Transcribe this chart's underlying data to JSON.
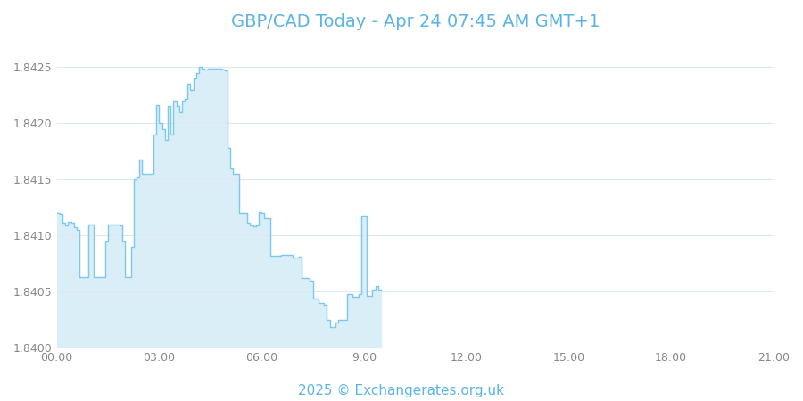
{
  "title": "GBP/CAD Today - Apr 24 07:45 AM GMT+1",
  "title_color": "#5ab4e5",
  "title_fontsize": 14,
  "footer_text": "2025 © Exchangerates.org.uk",
  "footer_color": "#5ab4e5",
  "footer_fontsize": 11,
  "line_color": "#7dc8ee",
  "fill_color": "#daeef8",
  "background_color": "#ffffff",
  "grid_color": "#dde8ef",
  "tick_color": "#888888",
  "ylim": [
    1.84,
    1.84275
  ],
  "yticks": [
    1.84,
    1.8405,
    1.841,
    1.8415,
    1.842,
    1.8425
  ],
  "xtick_labels": [
    "00:00",
    "03:00",
    "06:00",
    "9:00",
    "12:00",
    "15:00",
    "18:00",
    "21:00"
  ],
  "xtick_positions": [
    0,
    180,
    360,
    540,
    720,
    900,
    1080,
    1260
  ],
  "total_minutes": 1260,
  "series": [
    [
      0,
      1.8412
    ],
    [
      5,
      1.84119
    ],
    [
      10,
      1.84111
    ],
    [
      15,
      1.84109
    ],
    [
      20,
      1.84112
    ],
    [
      25,
      1.84111
    ],
    [
      30,
      1.84107
    ],
    [
      35,
      1.84105
    ],
    [
      40,
      1.84063
    ],
    [
      45,
      1.84063
    ],
    [
      50,
      1.84063
    ],
    [
      55,
      1.8411
    ],
    [
      60,
      1.8411
    ],
    [
      65,
      1.84063
    ],
    [
      70,
      1.84063
    ],
    [
      75,
      1.84063
    ],
    [
      80,
      1.84063
    ],
    [
      85,
      1.84095
    ],
    [
      90,
      1.8411
    ],
    [
      95,
      1.8411
    ],
    [
      100,
      1.8411
    ],
    [
      105,
      1.8411
    ],
    [
      110,
      1.84109
    ],
    [
      115,
      1.84095
    ],
    [
      120,
      1.84063
    ],
    [
      125,
      1.84063
    ],
    [
      130,
      1.8409
    ],
    [
      135,
      1.8415
    ],
    [
      140,
      1.84152
    ],
    [
      145,
      1.84168
    ],
    [
      150,
      1.84155
    ],
    [
      155,
      1.84155
    ],
    [
      160,
      1.84155
    ],
    [
      165,
      1.84155
    ],
    [
      170,
      1.8419
    ],
    [
      175,
      1.84216
    ],
    [
      180,
      1.842
    ],
    [
      185,
      1.84195
    ],
    [
      190,
      1.84185
    ],
    [
      195,
      1.84215
    ],
    [
      200,
      1.8419
    ],
    [
      205,
      1.8422
    ],
    [
      210,
      1.84215
    ],
    [
      215,
      1.8421
    ],
    [
      220,
      1.8422
    ],
    [
      225,
      1.84222
    ],
    [
      230,
      1.84235
    ],
    [
      235,
      1.8423
    ],
    [
      240,
      1.8424
    ],
    [
      245,
      1.84245
    ],
    [
      250,
      1.8425
    ],
    [
      255,
      1.84249
    ],
    [
      260,
      1.84248
    ],
    [
      265,
      1.84249
    ],
    [
      270,
      1.84249
    ],
    [
      275,
      1.84249
    ],
    [
      278,
      1.84249
    ],
    [
      280,
      1.84249
    ],
    [
      285,
      1.84249
    ],
    [
      288,
      1.84249
    ],
    [
      290,
      1.84248
    ],
    [
      295,
      1.84247
    ],
    [
      300,
      1.84178
    ],
    [
      305,
      1.8416
    ],
    [
      310,
      1.84155
    ],
    [
      315,
      1.84155
    ],
    [
      320,
      1.8412
    ],
    [
      325,
      1.8412
    ],
    [
      330,
      1.8412
    ],
    [
      335,
      1.84111
    ],
    [
      340,
      1.84109
    ],
    [
      345,
      1.84108
    ],
    [
      350,
      1.84109
    ],
    [
      355,
      1.84121
    ],
    [
      360,
      1.8412
    ],
    [
      365,
      1.84115
    ],
    [
      370,
      1.84115
    ],
    [
      375,
      1.84082
    ],
    [
      380,
      1.84082
    ],
    [
      385,
      1.84082
    ],
    [
      390,
      1.84082
    ],
    [
      395,
      1.84083
    ],
    [
      400,
      1.84083
    ],
    [
      405,
      1.84083
    ],
    [
      410,
      1.84083
    ],
    [
      415,
      1.8408
    ],
    [
      420,
      1.8408
    ],
    [
      425,
      1.84081
    ],
    [
      430,
      1.84062
    ],
    [
      435,
      1.84062
    ],
    [
      440,
      1.84062
    ],
    [
      445,
      1.8406
    ],
    [
      450,
      1.84044
    ],
    [
      455,
      1.84044
    ],
    [
      460,
      1.8404
    ],
    [
      465,
      1.8404
    ],
    [
      470,
      1.84038
    ],
    [
      475,
      1.84025
    ],
    [
      480,
      1.84018
    ],
    [
      485,
      1.84018
    ],
    [
      490,
      1.84022
    ],
    [
      495,
      1.84025
    ],
    [
      500,
      1.84025
    ],
    [
      505,
      1.84025
    ],
    [
      510,
      1.84048
    ],
    [
      515,
      1.84048
    ],
    [
      520,
      1.84045
    ],
    [
      525,
      1.84045
    ],
    [
      530,
      1.84048
    ],
    [
      535,
      1.84118
    ],
    [
      540,
      1.84118
    ],
    [
      545,
      1.84046
    ],
    [
      550,
      1.84046
    ],
    [
      555,
      1.84052
    ],
    [
      560,
      1.84055
    ],
    [
      565,
      1.84052
    ],
    [
      570,
      1.84052
    ]
  ]
}
